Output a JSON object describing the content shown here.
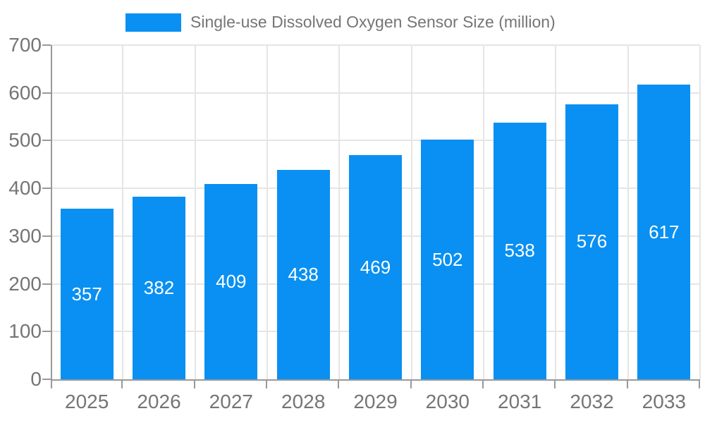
{
  "legend": {
    "label": "Single-use Dissolved Oxygen Sensor Size (million)"
  },
  "chart_data": {
    "type": "bar",
    "title": "Single-use Dissolved Oxygen Sensor Size (million)",
    "categories": [
      "2025",
      "2026",
      "2027",
      "2028",
      "2029",
      "2030",
      "2031",
      "2032",
      "2033"
    ],
    "series": [
      {
        "name": "Single-use Dissolved Oxygen Sensor Size (million)",
        "values": [
          357,
          382,
          409,
          438,
          469,
          502,
          538,
          576,
          617
        ]
      }
    ],
    "xlabel": "",
    "ylabel": "",
    "ylim": [
      0,
      700
    ],
    "yticks": [
      0,
      100,
      200,
      300,
      400,
      500,
      600,
      700
    ],
    "grid": true,
    "legend_position": "top",
    "value_labels": "inside-center"
  },
  "colors": {
    "bar": "#0990f2",
    "axis": "#999999",
    "gridline": "#e5e5e5",
    "tick_text": "#757575",
    "legend_text": "#757575",
    "value_label": "#ffffff",
    "background": "#ffffff"
  }
}
